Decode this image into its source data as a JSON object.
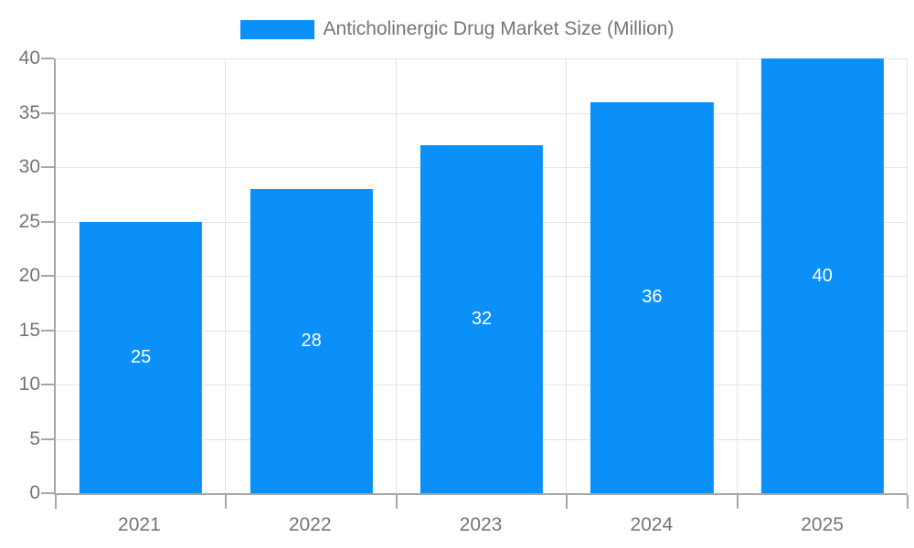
{
  "legend": {
    "label": "Anticholinergic Drug Market Size (Million)"
  },
  "chart_data": {
    "type": "bar",
    "title": "Anticholinergic Drug Market Size (Million)",
    "categories": [
      "2021",
      "2022",
      "2023",
      "2024",
      "2025"
    ],
    "values": [
      25,
      28,
      32,
      36,
      40
    ],
    "xlabel": "",
    "ylabel": "",
    "ylim": [
      0,
      40
    ],
    "yticks": [
      0,
      5,
      10,
      15,
      20,
      25,
      30,
      35,
      40
    ],
    "grid": true,
    "legend_position": "top",
    "value_labels": "inside-center"
  },
  "colors": {
    "bar": "#0B90FA",
    "axis": "#a6a6a6",
    "grid": "#e4e4e4",
    "tick_label": "#757575",
    "legend_label": "#757575",
    "value_label": "#ffffff"
  }
}
